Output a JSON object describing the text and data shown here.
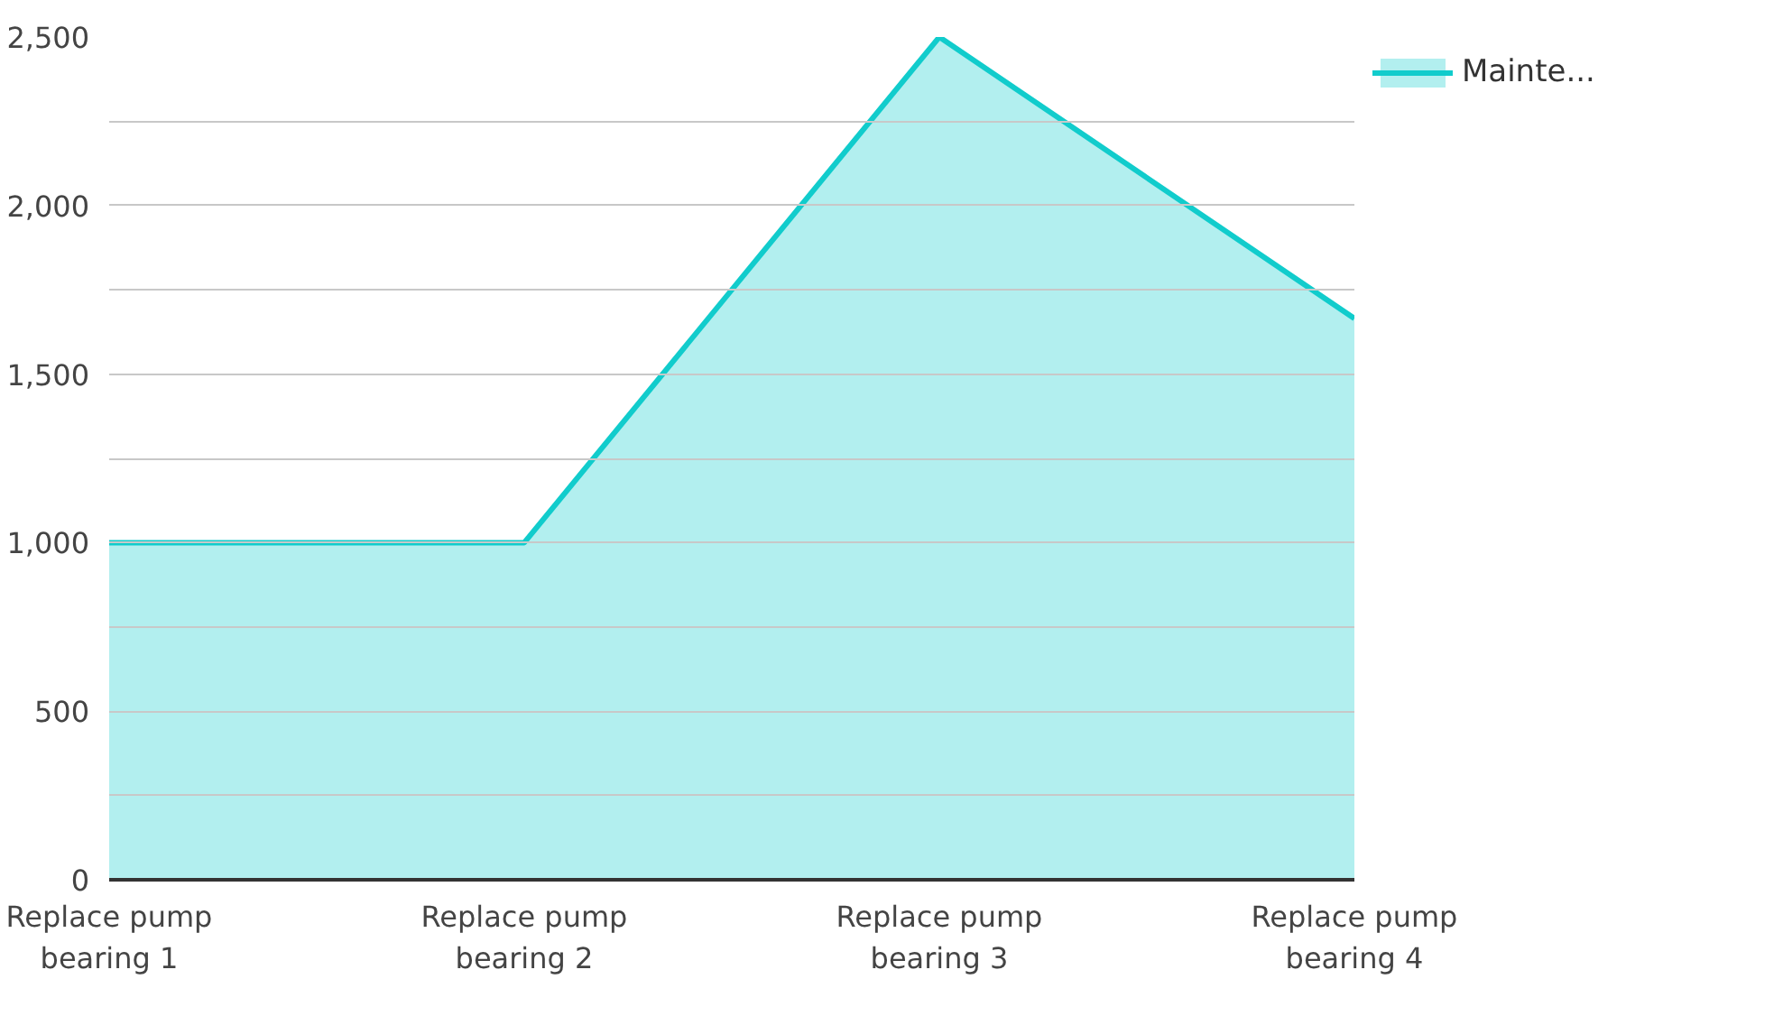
{
  "chart_data": {
    "type": "area",
    "categories": [
      "Replace pump bearing 1",
      "Replace pump bearing 2",
      "Replace pump bearing 3",
      "Replace pump bearing 4"
    ],
    "series": [
      {
        "name": "Mainte...",
        "color": "#11cccc",
        "values": [
          1000,
          1000,
          2500,
          1665
        ]
      }
    ],
    "ylim": [
      0,
      2500
    ],
    "yticks": [
      0,
      {
        "value": 250,
        "label": null
      },
      500,
      {
        "value": 750,
        "label": null
      },
      {
        "value": 1000,
        "label": "1,000"
      },
      {
        "value": 1250,
        "label": null
      },
      {
        "value": 1500,
        "label": "1,500"
      },
      {
        "value": 1750,
        "label": null
      },
      {
        "value": 2000,
        "label": "2,000"
      },
      {
        "value": 2250,
        "label": null
      },
      {
        "value": 2500,
        "label": "2,500"
      }
    ],
    "grid": "y",
    "legend": "top right",
    "marker": "none",
    "line_style": "solid"
  }
}
